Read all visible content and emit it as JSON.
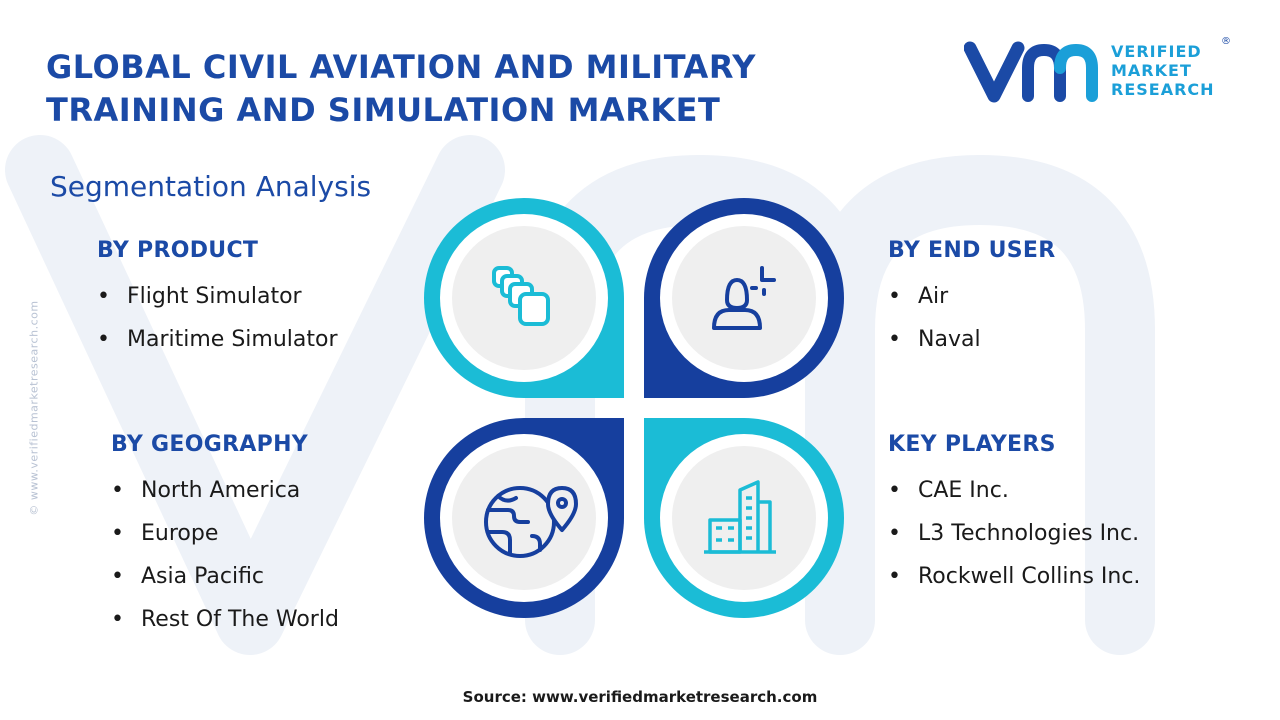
{
  "title_lines": [
    "GLOBAL CIVIL AVIATION AND MILITARY",
    "TRAINING AND SIMULATION MARKET"
  ],
  "logo": {
    "lines": [
      "VERIFIED",
      "MARKET",
      "RESEARCH"
    ],
    "registered": "®"
  },
  "subtitle": "Segmentation Analysis",
  "segments": {
    "product": {
      "heading": "BY PRODUCT",
      "items": [
        "Flight Simulator",
        "Maritime Simulator"
      ]
    },
    "end_user": {
      "heading": "BY END USER",
      "items": [
        "Air",
        "Naval"
      ]
    },
    "geography": {
      "heading": "BY GEOGRAPHY",
      "items": [
        "North America",
        "Europe",
        "Asia Pacific",
        "Rest Of The World"
      ]
    },
    "key_players": {
      "heading": "KEY PLAYERS",
      "items": [
        "CAE Inc.",
        "L3 Technologies Inc.",
        "Rockwell Collins Inc."
      ]
    }
  },
  "bullet": "•",
  "icons": {
    "product": "stacked-frames-icon",
    "end_user": "person-icon",
    "geography": "globe-location-icon",
    "key_players": "buildings-icon"
  },
  "colors": {
    "navy": "#1b4aa6",
    "cyan": "#1bbcd6",
    "dark_blue": "#163f9e",
    "circle_fill": "#efefef"
  },
  "side_text": "© www.verifiedmarketresearch.com",
  "source": "Source: www.verifiedmarketresearch.com"
}
